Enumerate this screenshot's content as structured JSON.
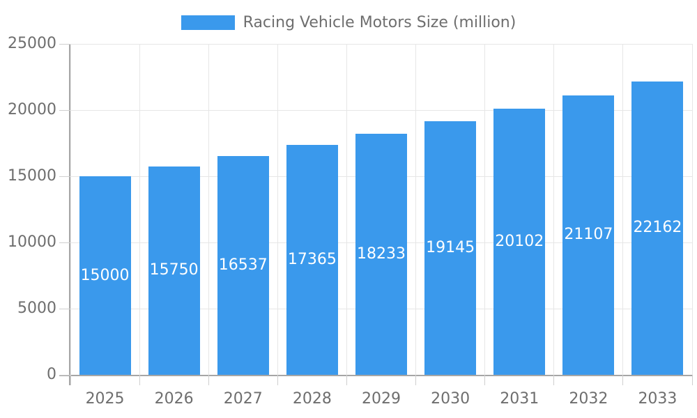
{
  "legend": {
    "label": "Racing Vehicle Motors Size (million)"
  },
  "chart_data": {
    "type": "bar",
    "title": "Racing Vehicle Motors Size (million)",
    "categories": [
      "2025",
      "2026",
      "2027",
      "2028",
      "2029",
      "2030",
      "2031",
      "2032",
      "2033"
    ],
    "values": [
      15000,
      15750,
      16537,
      17365,
      18233,
      19145,
      20102,
      21107,
      22162
    ],
    "xlabel": "",
    "ylabel": "",
    "ylim": [
      0,
      25000
    ],
    "yticks": [
      0,
      5000,
      10000,
      15000,
      20000,
      25000
    ],
    "grid": true,
    "legend_position": "top",
    "data_labels": "inside-center"
  },
  "colors": {
    "bar": "#3a99ec",
    "bar_label": "#ffffff",
    "axis_line": "#a6a6a6",
    "grid_line": "#e6e6e6",
    "tick_mark": "#cfcfcf",
    "text": "#6e6e6e",
    "background": "#ffffff"
  }
}
